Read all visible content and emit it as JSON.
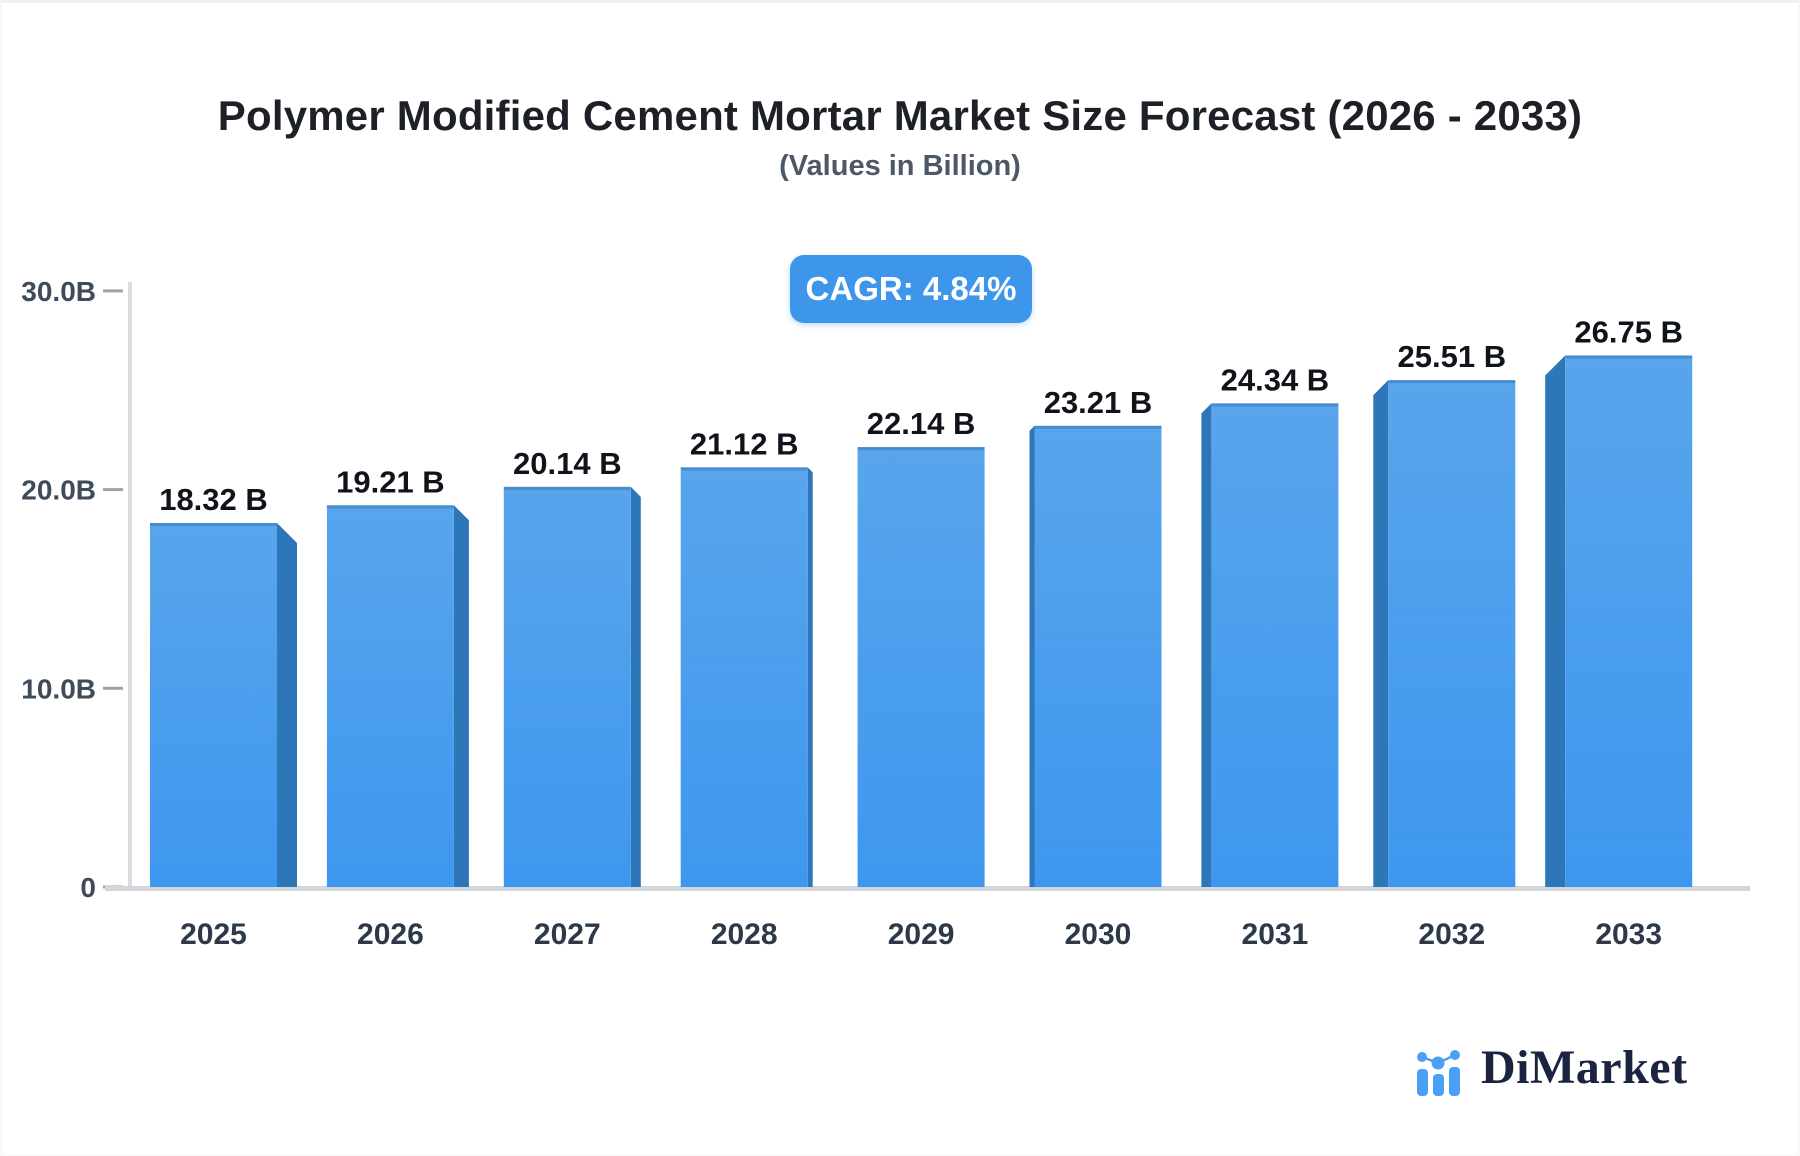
{
  "header": {
    "title": "Polymer Modified Cement Mortar Market Size Forecast (2026 - 2033)",
    "subtitle": "(Values in Billion)"
  },
  "badge": {
    "label": "CAGR: 4.84%",
    "background": "#3e96ea",
    "text_color": "#ffffff"
  },
  "chart_data": {
    "type": "bar",
    "title": "Polymer Modified Cement Mortar Market Size Forecast (2026 - 2033)",
    "subtitle": "(Values in Billion)",
    "categories": [
      "2025",
      "2026",
      "2027",
      "2028",
      "2029",
      "2030",
      "2031",
      "2032",
      "2033"
    ],
    "values": [
      18.32,
      19.21,
      20.14,
      21.12,
      22.14,
      23.21,
      24.34,
      25.51,
      26.75
    ],
    "value_labels": [
      "18.32 B",
      "19.21 B",
      "20.14 B",
      "21.12 B",
      "22.14 B",
      "23.21 B",
      "24.34 B",
      "25.51 B",
      "26.75 B"
    ],
    "xlabel": "",
    "ylabel": "",
    "ytick_labels": [
      "30.0B",
      "20.0B",
      "10.0B",
      "0"
    ],
    "ytick_values": [
      30,
      20,
      10,
      0
    ],
    "ylim": [
      0,
      30
    ],
    "grid": false,
    "legend": false,
    "annotation": "CAGR: 4.84%",
    "colors": {
      "bar_face_top": "#58a5ec",
      "bar_face_bottom": "#3e97ef",
      "bar_top_edge": "rgba(30,80,130,0.28)",
      "bar_side": "#2d76b7",
      "axis_line": "#d9dce1",
      "baseline": "#d2d6db",
      "tick_mark": "#9aa4b0",
      "ytick_text": "#3f4b59",
      "xtick_text": "#2d3949",
      "value_text": "#10141a"
    }
  },
  "logo": {
    "text": "DiMarket",
    "icon": "bar-chart-sparkline-logo-icon",
    "text_color": "#1a2440",
    "accent": "#4aa0f5"
  }
}
